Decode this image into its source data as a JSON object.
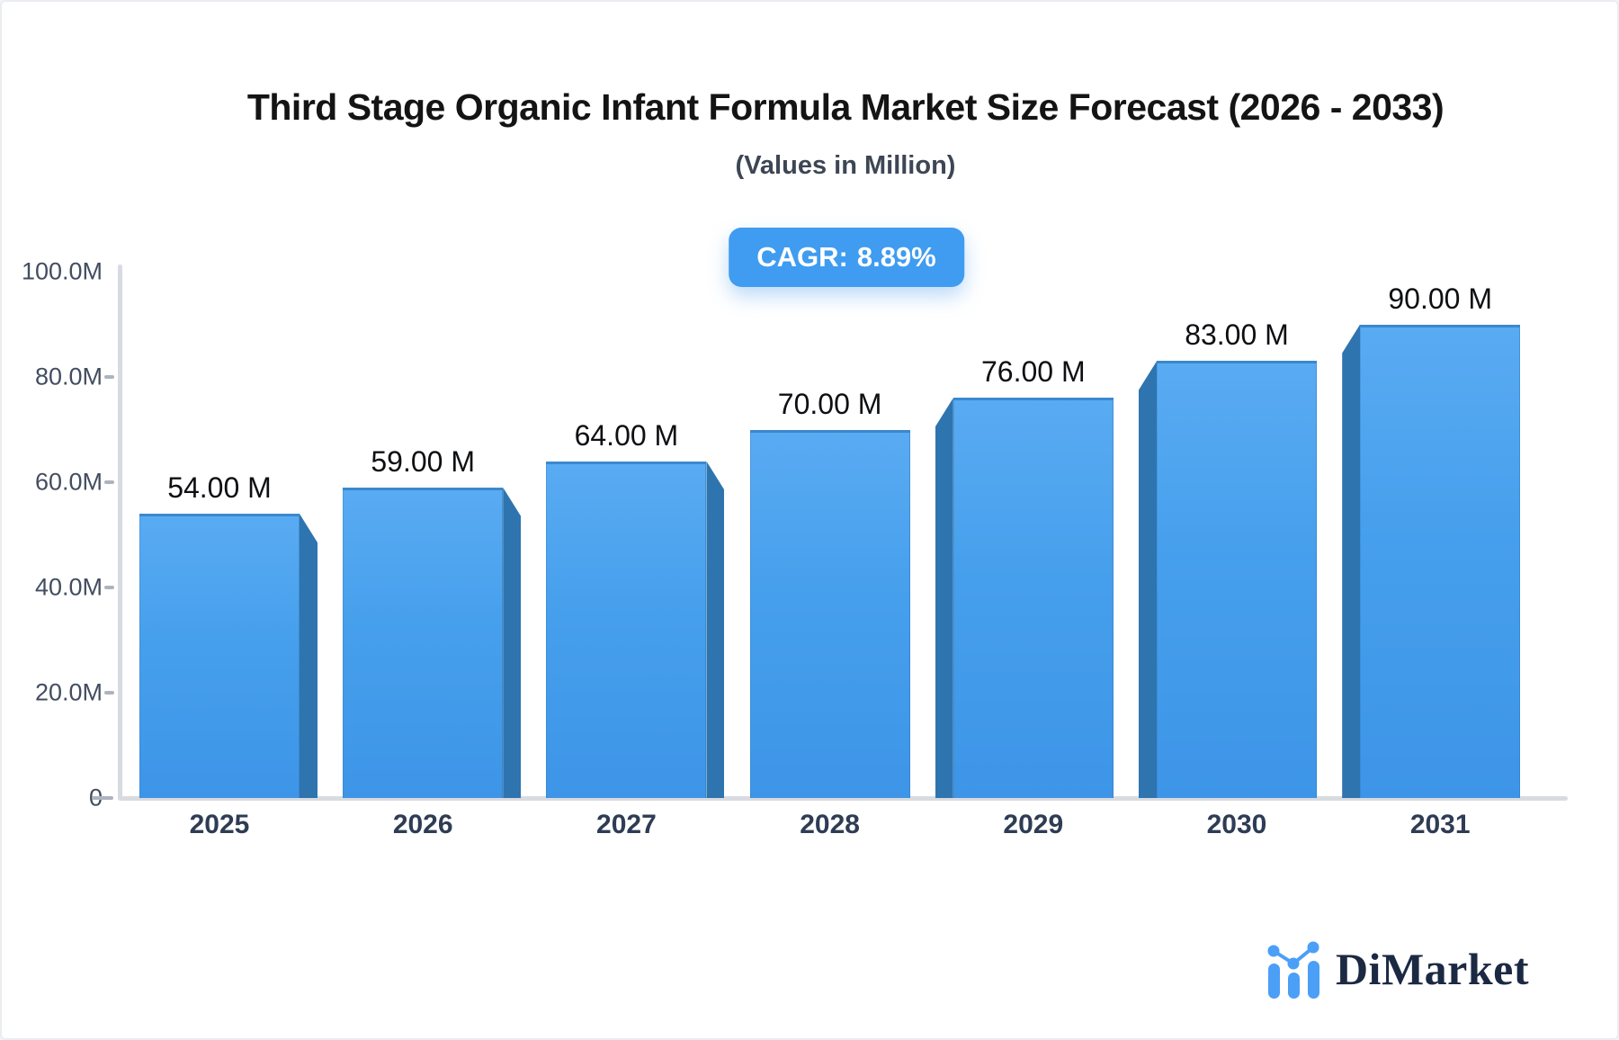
{
  "header": {
    "title": "Third Stage Organic Infant Formula Market Size Forecast (2026 - 2033)",
    "subtitle": "(Values in Million)"
  },
  "badge": {
    "label": "CAGR:",
    "value": "8.89%",
    "bg_color": "#3F9CF0",
    "text_color": "#FFFFFF"
  },
  "chart_data": {
    "type": "bar",
    "title": "Third Stage Organic Infant Formula Market Size Forecast (2026 - 2033)",
    "subtitle": "(Values in Million)",
    "unit": "Million",
    "cagr": "8.89%",
    "categories": [
      "2025",
      "2026",
      "2027",
      "2028",
      "2029",
      "2030",
      "2031"
    ],
    "values": [
      54,
      59,
      64,
      70,
      76,
      83,
      90
    ],
    "value_labels": [
      "54.00 M",
      "59.00 M",
      "64.00 M",
      "70.00 M",
      "76.00 M",
      "83.00 M",
      "90.00 M"
    ],
    "xlabel": "",
    "ylabel": "",
    "ylim": [
      0,
      100
    ],
    "yticks": [
      {
        "label": "100.0M",
        "value": 100
      },
      {
        "label": "80.0M",
        "value": 80
      },
      {
        "label": "60.0M",
        "value": 60
      },
      {
        "label": "40.0M",
        "value": 40
      },
      {
        "label": "20.0M",
        "value": 20
      },
      {
        "label": "0",
        "value": 0
      }
    ],
    "grid": false,
    "legend": false,
    "style": "pseudo-3d columns, perspective toward center bar",
    "colors": {
      "bar_face": "#469FEC",
      "bar_face_top": "#59ABF2",
      "bar_face_bottom": "#3E95E8",
      "bar_side": "#2E74AF",
      "bar_top_edge": "#3A88CD",
      "axis": "#D8DBE0",
      "tick": "#AEB4BE",
      "ytick_text": "#434D60",
      "xtick_text": "#2E3C54",
      "value_text": "#0E0F12"
    }
  },
  "brand": {
    "name": "DiMarket",
    "icon": "bar-line-chart-icon",
    "icon_color": "#4B9FF7",
    "text_color": "#1B2943"
  }
}
